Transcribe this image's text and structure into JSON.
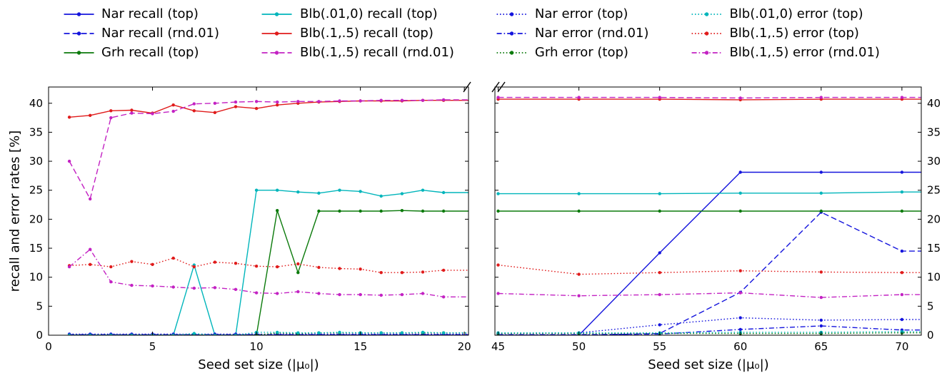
{
  "figure": {
    "ylabel": "recall and error rates [%]",
    "background": "#ffffff",
    "axis_color": "#000000"
  },
  "chart_data": [
    {
      "type": "line",
      "title": "",
      "xlabel": "Seed set size (|μ₀|)",
      "ylabel": "recall and error rates [%]",
      "xlim": [
        0,
        20.2
      ],
      "ylim": [
        0,
        42.8
      ],
      "xticks": [
        0,
        5,
        10,
        15,
        20
      ],
      "yticks": [
        0,
        5,
        10,
        15,
        20,
        25,
        30,
        35,
        40
      ],
      "ytick_label_side": "left",
      "grid": false,
      "legend_position": "top",
      "edge_extend": true,
      "x": [
        1,
        2,
        3,
        4,
        5,
        6,
        7,
        8,
        9,
        10,
        11,
        12,
        13,
        14,
        15,
        16,
        17,
        18,
        19
      ],
      "series": [
        {
          "name": "Nar recall (top)",
          "color": "#1414dd",
          "dash": "solid",
          "values": [
            0,
            0,
            0,
            0,
            0,
            0,
            0,
            0,
            0,
            0,
            0,
            0,
            0,
            0,
            0,
            0,
            0,
            0,
            0
          ]
        },
        {
          "name": "Nar recall (rnd.01)",
          "color": "#1414dd",
          "dash": "dashed",
          "values": [
            0,
            0,
            0,
            0,
            0,
            0,
            0,
            0,
            0,
            0,
            0,
            0,
            0,
            0,
            0,
            0,
            0,
            0,
            0
          ]
        },
        {
          "name": "Grh recall (top)",
          "color": "#0b7a0b",
          "dash": "solid",
          "values": [
            0,
            0,
            0,
            0,
            0,
            0,
            0,
            0,
            0,
            0,
            21.5,
            10.8,
            21.4,
            21.4,
            21.4,
            21.4,
            21.5,
            21.4,
            21.4
          ]
        },
        {
          "name": "Blb(.01,0) recall (top)",
          "color": "#00b5bb",
          "dash": "solid",
          "values": [
            0,
            0,
            0,
            0,
            0,
            0,
            12.1,
            0,
            0,
            25.0,
            25.0,
            24.7,
            24.5,
            25.0,
            24.8,
            24.0,
            24.4,
            25.0,
            24.6
          ]
        },
        {
          "name": "Blb(.1,.5) recall (top)",
          "color": "#e01b1b",
          "dash": "solid",
          "values": [
            37.6,
            37.9,
            38.7,
            38.8,
            38.3,
            39.7,
            38.7,
            38.4,
            39.4,
            39.1,
            39.7,
            40.0,
            40.2,
            40.3,
            40.4,
            40.4,
            40.4,
            40.5,
            40.5
          ]
        },
        {
          "name": "Blb(.1,.5) recall (rnd.01)",
          "color": "#c322c3",
          "dash": "dashed",
          "values": [
            30.0,
            23.5,
            37.5,
            38.3,
            38.2,
            38.6,
            39.9,
            40.0,
            40.2,
            40.3,
            40.2,
            40.3,
            40.3,
            40.4,
            40.4,
            40.5,
            40.5,
            40.5,
            40.6
          ]
        },
        {
          "name": "Nar error (top)",
          "color": "#1414dd",
          "dash": "dotted",
          "values": [
            0.2,
            0.2,
            0.2,
            0.2,
            0.2,
            0.2,
            0.2,
            0.2,
            0.2,
            0.2,
            0.2,
            0.2,
            0.2,
            0.2,
            0.2,
            0.2,
            0.2,
            0.2,
            0.2
          ]
        },
        {
          "name": "Nar error (rnd.01)",
          "color": "#1414dd",
          "dash": "dashdot",
          "values": [
            0.1,
            0.1,
            0.1,
            0.1,
            0.1,
            0.1,
            0.1,
            0.1,
            0.1,
            0.1,
            0.1,
            0.1,
            0.1,
            0.1,
            0.1,
            0.1,
            0.1,
            0.1,
            0.1
          ]
        },
        {
          "name": "Grh error (top)",
          "color": "#0b7a0b",
          "dash": "dotted",
          "values": [
            0,
            0,
            0,
            0,
            0,
            0,
            0,
            0,
            0,
            0,
            0.4,
            0.3,
            0.4,
            0.4,
            0.4,
            0.4,
            0.4,
            0.4,
            0.4
          ]
        },
        {
          "name": "Blb(.01,0) error (top)",
          "color": "#00b5bb",
          "dash": "dotted",
          "values": [
            0,
            0,
            0,
            0,
            0,
            0,
            0.3,
            0,
            0,
            0.5,
            0.5,
            0.4,
            0.4,
            0.5,
            0.4,
            0.4,
            0.4,
            0.5,
            0.4
          ]
        },
        {
          "name": "Blb(.1,.5) error (top)",
          "color": "#e01b1b",
          "dash": "dotted",
          "values": [
            12.0,
            12.2,
            11.8,
            12.7,
            12.2,
            13.3,
            11.8,
            12.6,
            12.4,
            11.9,
            11.8,
            12.3,
            11.7,
            11.5,
            11.4,
            10.8,
            10.8,
            10.9,
            11.2
          ]
        },
        {
          "name": "Blb(.1,.5) error (rnd.01)",
          "color": "#c322c3",
          "dash": "dashdot",
          "values": [
            11.8,
            14.8,
            9.2,
            8.6,
            8.5,
            8.3,
            8.1,
            8.2,
            7.9,
            7.3,
            7.2,
            7.5,
            7.2,
            7.0,
            7.0,
            6.9,
            7.0,
            7.2,
            6.6
          ]
        }
      ]
    },
    {
      "type": "line",
      "title": "",
      "xlabel": "Seed set size (|μ₀|)",
      "ylabel": "recall and error rates [%]",
      "xlim": [
        44.8,
        71.2
      ],
      "ylim": [
        0,
        42.8
      ],
      "xticks": [
        45,
        50,
        55,
        60,
        65,
        70
      ],
      "yticks": [
        0,
        5,
        10,
        15,
        20,
        25,
        30,
        35,
        40
      ],
      "ytick_label_side": "right",
      "grid": false,
      "legend_position": "top",
      "edge_extend": true,
      "x": [
        45,
        50,
        55,
        60,
        65,
        70
      ],
      "series": [
        {
          "name": "Nar recall (top)",
          "color": "#1414dd",
          "dash": "solid",
          "values": [
            0,
            0,
            14.2,
            28.1,
            28.1,
            28.1
          ]
        },
        {
          "name": "Nar recall (rnd.01)",
          "color": "#1414dd",
          "dash": "dashed",
          "values": [
            0,
            0,
            0.3,
            7.4,
            21.2,
            14.5
          ]
        },
        {
          "name": "Grh recall (top)",
          "color": "#0b7a0b",
          "dash": "solid",
          "values": [
            21.4,
            21.4,
            21.4,
            21.4,
            21.4,
            21.4
          ]
        },
        {
          "name": "Blb(.01,0) recall (top)",
          "color": "#00b5bb",
          "dash": "solid",
          "values": [
            24.4,
            24.4,
            24.4,
            24.5,
            24.5,
            24.7
          ]
        },
        {
          "name": "Blb(.1,.5) recall (top)",
          "color": "#e01b1b",
          "dash": "solid",
          "values": [
            40.7,
            40.7,
            40.7,
            40.6,
            40.7,
            40.7
          ]
        },
        {
          "name": "Blb(.1,.5) recall (rnd.01)",
          "color": "#c322c3",
          "dash": "dashed",
          "values": [
            41.0,
            41.0,
            41.0,
            40.9,
            41.0,
            41.0
          ]
        },
        {
          "name": "Nar error (top)",
          "color": "#1414dd",
          "dash": "dotted",
          "values": [
            0.3,
            0.4,
            1.8,
            3.0,
            2.6,
            2.7
          ]
        },
        {
          "name": "Nar error (rnd.01)",
          "color": "#1414dd",
          "dash": "dashdot",
          "values": [
            0.1,
            0.1,
            0.2,
            1.0,
            1.6,
            0.9
          ]
        },
        {
          "name": "Grh error (top)",
          "color": "#0b7a0b",
          "dash": "dotted",
          "values": [
            0.3,
            0.3,
            0.3,
            0.3,
            0.3,
            0.4
          ]
        },
        {
          "name": "Blb(.01,0) error (top)",
          "color": "#00b5bb",
          "dash": "dotted",
          "values": [
            0.4,
            0.4,
            0.4,
            0.5,
            0.5,
            0.6
          ]
        },
        {
          "name": "Blb(.1,.5) error (top)",
          "color": "#e01b1b",
          "dash": "dotted",
          "values": [
            12.1,
            10.5,
            10.8,
            11.1,
            10.9,
            10.8
          ]
        },
        {
          "name": "Blb(.1,.5) error (rnd.01)",
          "color": "#c322c3",
          "dash": "dashdot",
          "values": [
            7.2,
            6.8,
            7.0,
            7.3,
            6.5,
            7.0
          ]
        }
      ]
    }
  ]
}
